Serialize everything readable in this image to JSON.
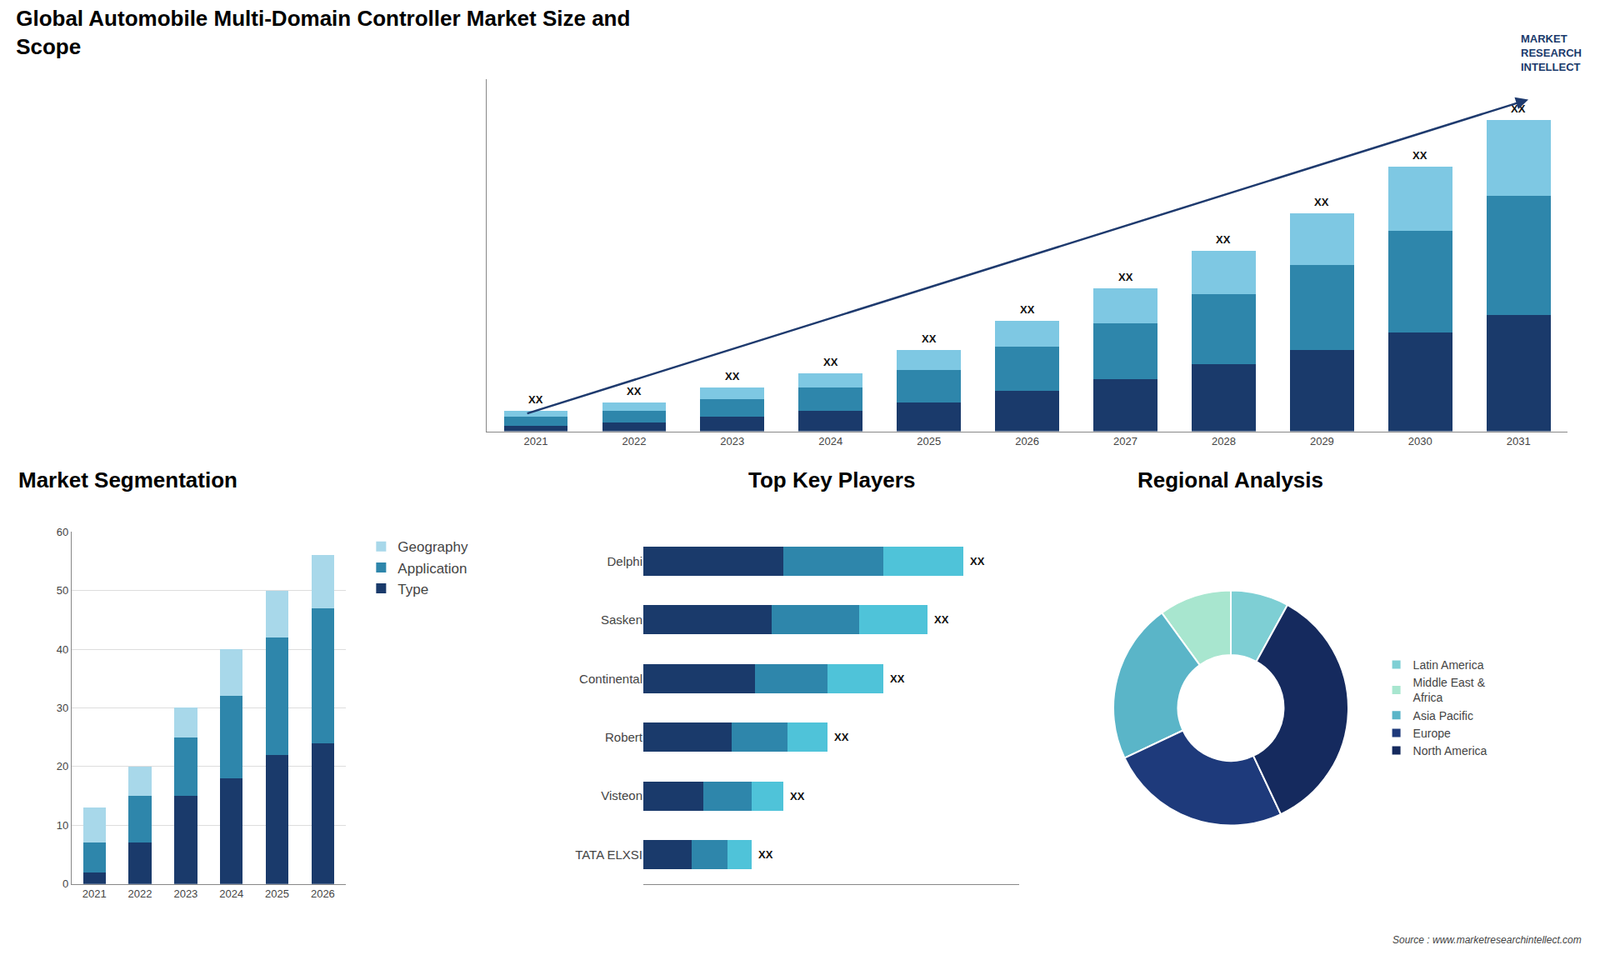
{
  "chart_data": [
    {
      "type": "bar",
      "stacked": true,
      "title": "Global Automobile Multi-Domain Controller Market Size and\nScope",
      "categories": [
        "2021",
        "2022",
        "2023",
        "2024",
        "2025",
        "2026",
        "2027",
        "2028",
        "2029",
        "2030",
        "2031"
      ],
      "series": [
        {
          "color": "#1a3a6b",
          "values": [
            2,
            3,
            5,
            7,
            10,
            14,
            18,
            23,
            28,
            34,
            40
          ]
        },
        {
          "color": "#2e86ab",
          "values": [
            3,
            4,
            6,
            8,
            11,
            15,
            19,
            24,
            29,
            35,
            41
          ]
        },
        {
          "color": "#7ec8e3",
          "values": [
            2,
            3,
            4,
            5,
            7,
            9,
            12,
            15,
            18,
            22,
            26
          ]
        }
      ],
      "ylim": [
        0,
        121
      ],
      "yticks": [],
      "tick_labels": "x",
      "grid": false,
      "annotations": [
        {
          "x": "2021",
          "text": "XX"
        },
        {
          "x": "2022",
          "text": "XX"
        },
        {
          "x": "2023",
          "text": "XX"
        },
        {
          "x": "2024",
          "text": "XX"
        },
        {
          "x": "2025",
          "text": "XX"
        },
        {
          "x": "2026",
          "text": "XX"
        },
        {
          "x": "2027",
          "text": "XX"
        },
        {
          "x": "2028",
          "text": "XX"
        },
        {
          "x": "2029",
          "text": "XX"
        },
        {
          "x": "2030",
          "text": "XX"
        },
        {
          "x": "2031",
          "text": "XX"
        },
        {
          "type": "arrow",
          "color": "#1e3a6e",
          "from": "2021",
          "to": "2031"
        },
        {
          "text": "MARKET\nRESEARCH\nINTELLECT",
          "color": "#1a3a6b"
        },
        {
          "text": "Source : www.marketresearchintellect.com"
        }
      ]
    },
    {
      "type": "bar",
      "stacked": true,
      "title": "Market Segmentation",
      "categories": [
        "2021",
        "2022",
        "2023",
        "2024",
        "2025",
        "2026"
      ],
      "series": [
        {
          "name": "Type",
          "color": "#1a3a6b",
          "values": [
            2,
            7,
            15,
            18,
            22,
            24
          ]
        },
        {
          "name": "Application",
          "color": "#2e86ab",
          "values": [
            5,
            8,
            10,
            14,
            20,
            23
          ]
        },
        {
          "name": "Geography",
          "color": "#a8d8ea",
          "values": [
            6,
            5,
            5,
            8,
            8,
            9
          ]
        }
      ],
      "ylim": [
        0,
        60
      ],
      "yticks": [
        0,
        10,
        20,
        30,
        40,
        50,
        60
      ],
      "grid": true,
      "legend": "right"
    },
    {
      "type": "bar",
      "stacked": true,
      "orientation": "horizontal",
      "title": "Top Key Players",
      "categories": [
        "Delphi",
        "Sasken",
        "Continental",
        "Robert",
        "Visteon",
        "TATA ELXSI"
      ],
      "series": [
        {
          "color": "#1a3a6b",
          "values": [
            35,
            32,
            28,
            22,
            15,
            12
          ]
        },
        {
          "color": "#2e86ab",
          "values": [
            25,
            22,
            18,
            14,
            12,
            9
          ]
        },
        {
          "color": "#4fc3d9",
          "values": [
            20,
            17,
            14,
            10,
            8,
            6
          ]
        }
      ],
      "xlim": [
        0,
        94
      ],
      "xticks": [],
      "tick_labels": "y",
      "grid": false,
      "annotations": [
        {
          "y": "Delphi",
          "text": "XX"
        },
        {
          "y": "Sasken",
          "text": "XX"
        },
        {
          "y": "Continental",
          "text": "XX"
        },
        {
          "y": "Robert",
          "text": "XX"
        },
        {
          "y": "Visteon",
          "text": "XX"
        },
        {
          "y": "TATA ELXSI",
          "text": "XX"
        }
      ]
    },
    {
      "type": "pie",
      "title": "Regional Analysis",
      "categories": [
        "Latin America",
        "Middle East &\nAfrica",
        "Asia Pacific",
        "Europe",
        "North America"
      ],
      "values": [
        8,
        10,
        22,
        25,
        35
      ],
      "colors": [
        "#7ecfd4",
        "#a8e6cf",
        "#5ab5c8",
        "#1e3a7b",
        "#152a5e"
      ],
      "legend": "right"
    }
  ]
}
